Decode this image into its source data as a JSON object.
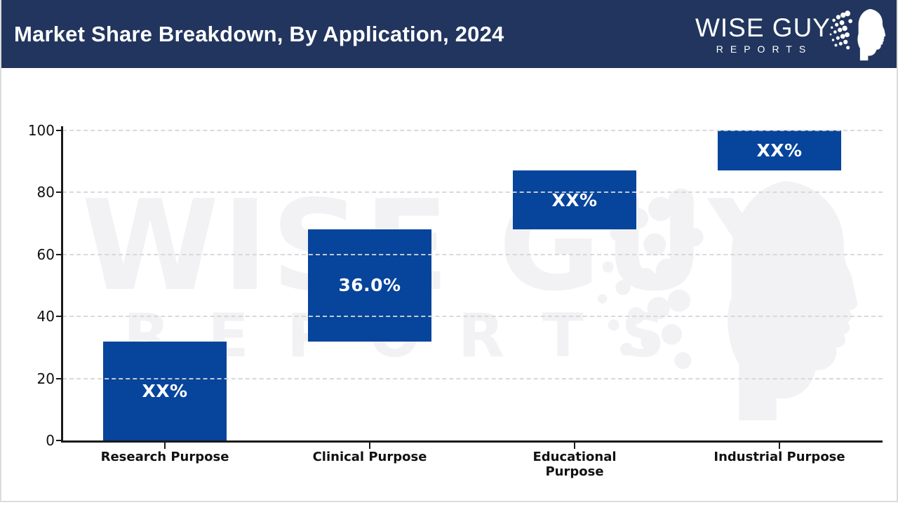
{
  "header": {
    "title": "Market Share Breakdown, By Application, 2024",
    "logo": {
      "line1": "WISE GUY",
      "line2": "REPORTS"
    }
  },
  "watermark": {
    "line1": "WISE GUY",
    "line2": "R E P O R T S"
  },
  "colors": {
    "header_bg": "#21355E",
    "bar": "#07449B",
    "bar_label": "#FFFFFF",
    "grid": "#D6D6D6",
    "axis": "#1A1A1A",
    "tick_text": "#111111",
    "watermark": "#F2F2F5"
  },
  "chart_data": {
    "type": "bar",
    "subtype": "floating-segment-market-share",
    "title": "Market Share Breakdown, By Application, 2024",
    "categories": [
      "Research Purpose",
      "Clinical Purpose",
      "Educational Purpose",
      "Industrial Purpose"
    ],
    "segments": [
      {
        "category": "Research Purpose",
        "start": 0,
        "end": 32,
        "value_pct": 32,
        "label": "XX%"
      },
      {
        "category": "Clinical Purpose",
        "start": 32,
        "end": 68,
        "value_pct": 36,
        "label": "36.0%"
      },
      {
        "category": "Educational Purpose",
        "start": 68,
        "end": 87,
        "value_pct": 19,
        "label": "XX%"
      },
      {
        "category": "Industrial Purpose",
        "start": 87,
        "end": 100,
        "value_pct": 13,
        "label": "XX%"
      }
    ],
    "xlabel": "",
    "ylabel": "",
    "ylim": [
      0,
      100
    ],
    "yticks": [
      0,
      20,
      40,
      60,
      80,
      100
    ],
    "grid": "dashed-horizontal",
    "legend": "none"
  }
}
